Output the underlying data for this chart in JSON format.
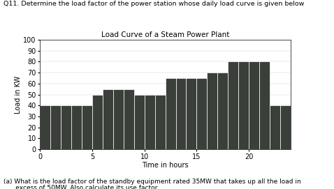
{
  "title": "Load Curve of a Steam Power Plant",
  "question": "Q11. Determine the load factor of the power station whose daily load curve is given below",
  "footnote_line1": "(a) What is the load factor of the standby equipment rated 35MW that takes up all the load in",
  "footnote_line2": "      excess of 50MW. Also calculate its use factor.",
  "xlabel": "Time in hours",
  "ylabel": "Load in KW",
  "xlim": [
    0,
    24
  ],
  "ylim": [
    0,
    100
  ],
  "yticks": [
    0,
    10,
    20,
    30,
    40,
    50,
    60,
    70,
    80,
    90,
    100
  ],
  "xticks": [
    0,
    5,
    10,
    15,
    20
  ],
  "bar_color": "#3a3f3a",
  "bar_edgecolor": "#ffffff",
  "hours": [
    0,
    1,
    2,
    3,
    4,
    5,
    6,
    7,
    8,
    9,
    10,
    11,
    12,
    13,
    14,
    15,
    16,
    17,
    18,
    19,
    20,
    21,
    22,
    23
  ],
  "loads": [
    40,
    40,
    40,
    40,
    40,
    50,
    55,
    55,
    55,
    50,
    50,
    50,
    65,
    65,
    65,
    65,
    70,
    70,
    80,
    80,
    80,
    80,
    40,
    40
  ],
  "fig_width": 4.78,
  "fig_height": 2.71,
  "dpi": 100
}
